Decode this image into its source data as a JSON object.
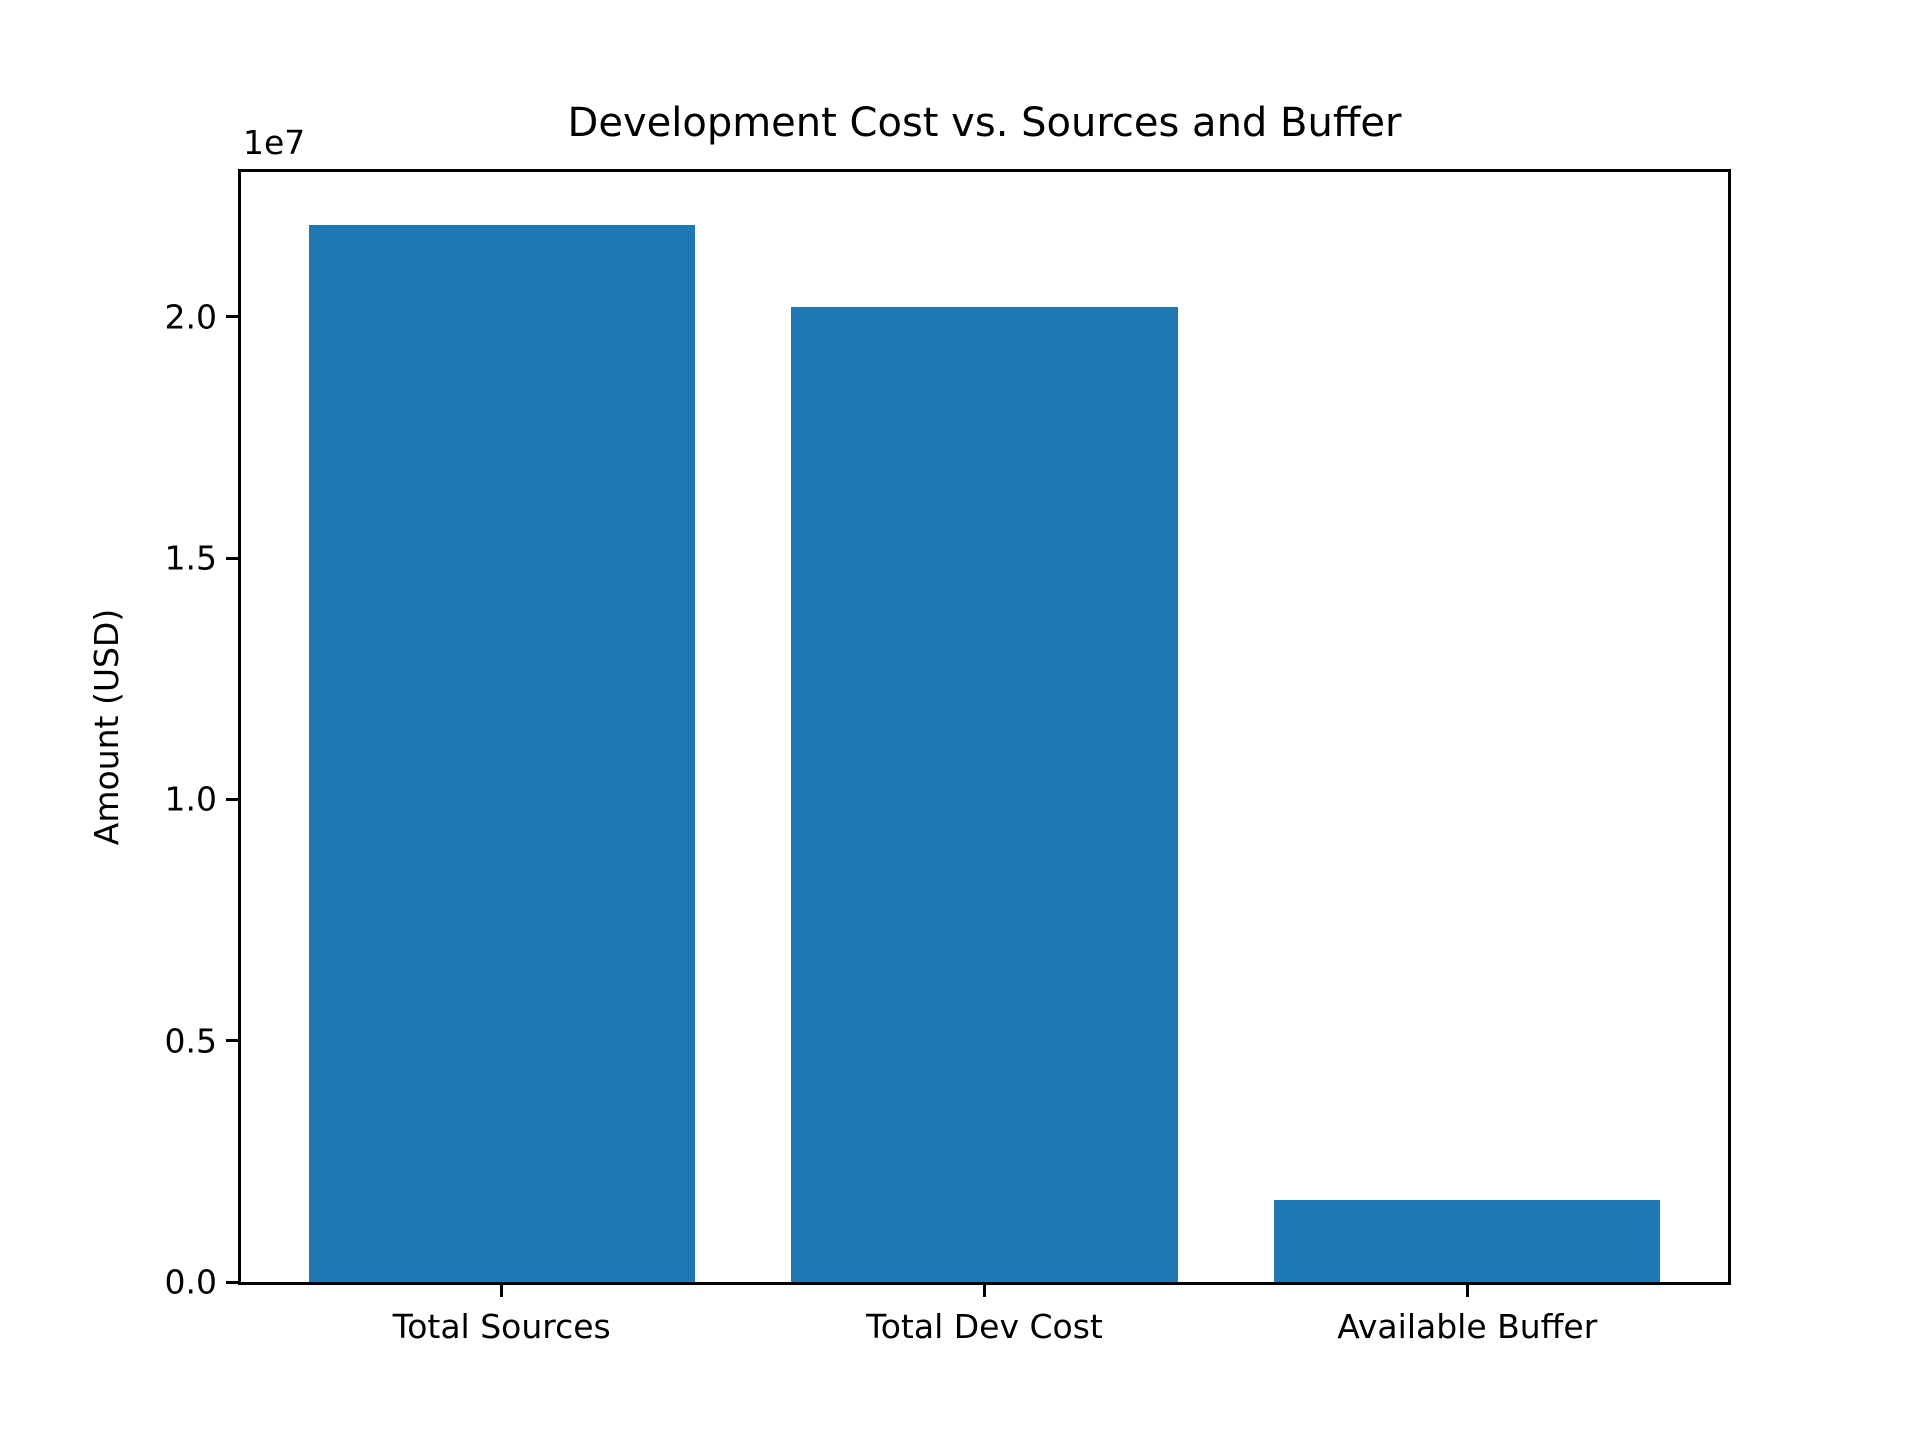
{
  "chart_data": {
    "type": "bar",
    "title": "Development Cost vs. Sources and Buffer",
    "categories": [
      "Total Sources",
      "Total Dev Cost",
      "Available Buffer"
    ],
    "values": [
      21900000,
      20200000,
      1700000
    ],
    "xlabel": "",
    "ylabel": "Amount (USD)",
    "ylim": [
      0,
      23000000
    ],
    "yticks": [
      0,
      5000000,
      10000000,
      15000000,
      20000000
    ],
    "ytick_labels": [
      "0.0",
      "0.5",
      "1.0",
      "1.5",
      "2.0"
    ],
    "offset_text": "1e7",
    "bar_color": "#1f77b4",
    "axis_color": "#000000",
    "background_color": "#ffffff",
    "grid": false,
    "legend_position": "none"
  }
}
